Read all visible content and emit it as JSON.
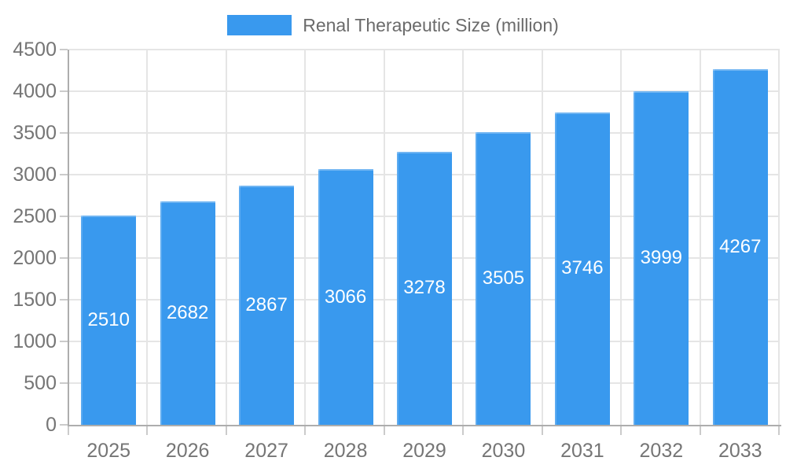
{
  "legend": {
    "items": [
      {
        "label": "Renal Therapeutic Size (million)"
      }
    ]
  },
  "chart_data": {
    "type": "bar",
    "title": "",
    "categories": [
      "2025",
      "2026",
      "2027",
      "2028",
      "2029",
      "2030",
      "2031",
      "2032",
      "2033"
    ],
    "series": [
      {
        "name": "Renal Therapeutic Size (million)",
        "values": [
          2510,
          2682,
          2867,
          3066,
          3278,
          3505,
          3746,
          3999,
          4267
        ]
      }
    ],
    "xlabel": "",
    "ylabel": "",
    "ylim": [
      0,
      4500
    ],
    "ytick_step": 500,
    "yticks": [
      0,
      500,
      1000,
      1500,
      2000,
      2500,
      3000,
      3500,
      4000,
      4500
    ],
    "grid": true,
    "legend_position": "top-center",
    "value_labels": "inside-center"
  },
  "colors": {
    "bar": "#3999EE",
    "grid": "#E5E5E5",
    "axis": "#ADADAD",
    "tick": "#CBCBCB",
    "axis_label": "#757575",
    "legend_text": "#6B6B6B",
    "value_label": "#FFFFFF",
    "background": "#FFFFFF"
  }
}
